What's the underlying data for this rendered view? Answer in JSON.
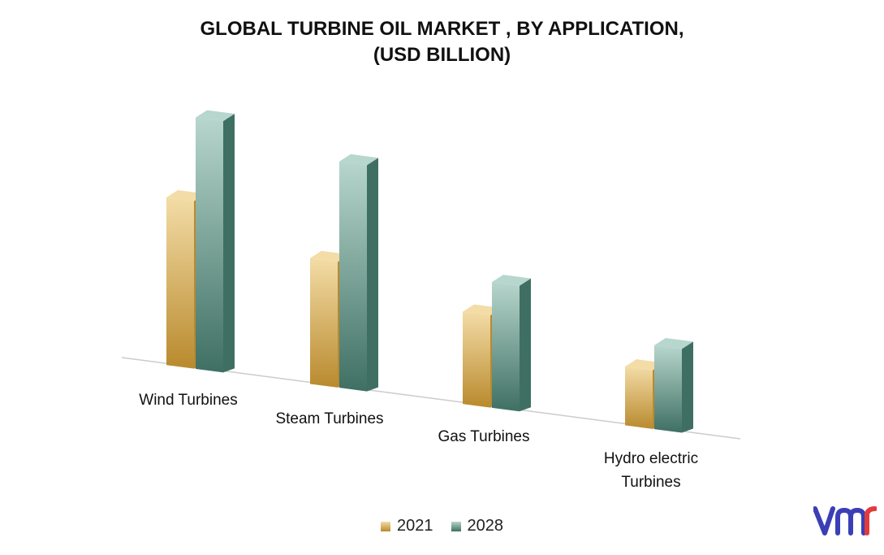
{
  "chart_data": {
    "type": "bar",
    "title_lines": [
      "GLOBAL TURBINE OIL MARKET , BY APPLICATION,",
      "(USD BILLION)"
    ],
    "categories": [
      "Wind Turbines",
      "Steam Turbines",
      "Gas Turbines",
      "Hydro electric Turbines"
    ],
    "category_lines": [
      [
        "Wind Turbines"
      ],
      [
        "Steam Turbines"
      ],
      [
        "Gas Turbines"
      ],
      [
        "Hydro electric",
        "Turbines"
      ]
    ],
    "series": [
      {
        "name": "2021",
        "values": [
          2.0,
          1.5,
          1.1,
          0.7
        ]
      },
      {
        "name": "2028",
        "values": [
          3.0,
          2.7,
          1.5,
          1.0
        ]
      }
    ],
    "xlabel": "",
    "ylabel": "",
    "ylim": [
      0,
      3.2
    ],
    "grid": false,
    "legend_position": "bottom",
    "style": "3d-bars"
  },
  "colors": {
    "series_2021_light": "#f3dca6",
    "series_2021_dark": "#b98a2e",
    "series_2028_light": "#b7d6cd",
    "series_2028_dark": "#3f6f63",
    "baseline": "#cccccc"
  },
  "brand": {
    "logo_icon": "vmr-logo",
    "color": "#3b3fb6"
  }
}
